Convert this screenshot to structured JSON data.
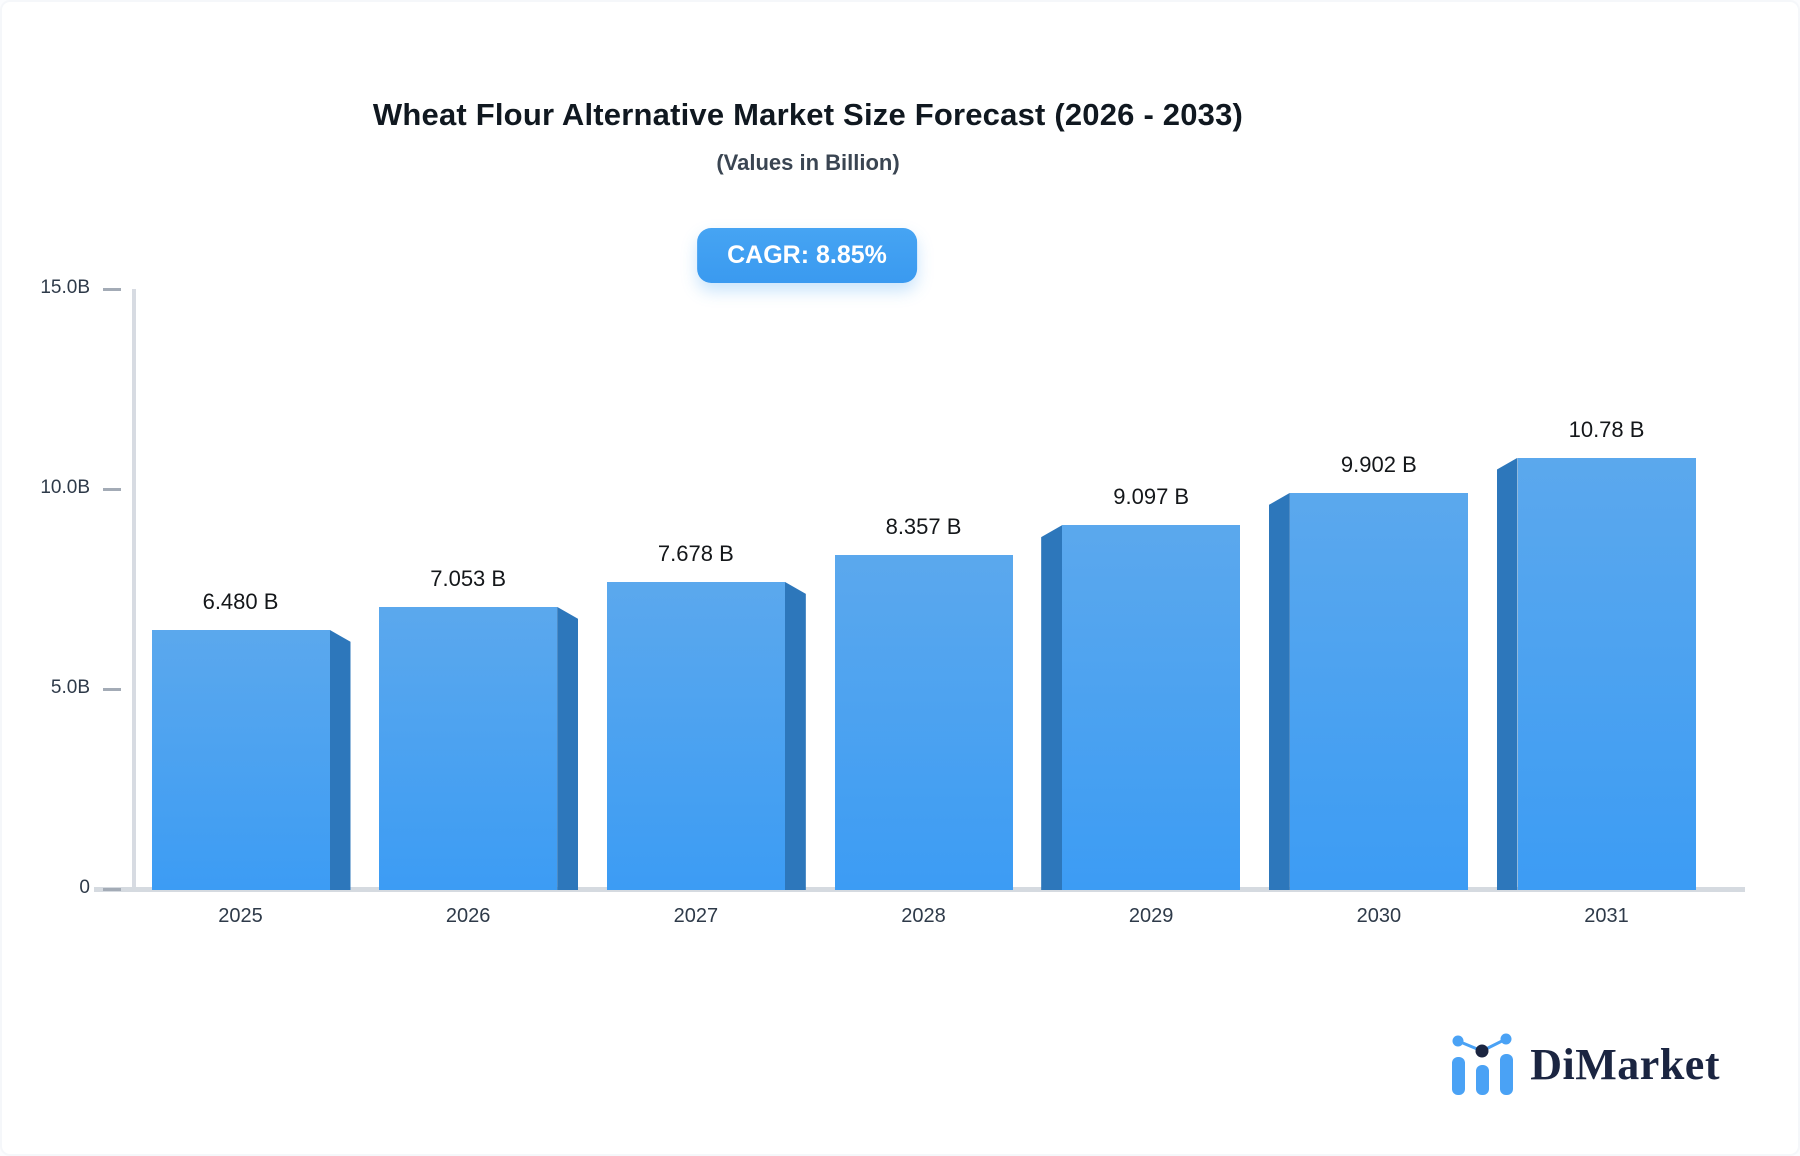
{
  "badge": {
    "label": "CAGR: 8.85%"
  },
  "logo": {
    "text": "DiMarket",
    "icon": "bar-chart-logo-icon"
  },
  "colors": {
    "accent_blue": "#3e9ff1",
    "bar_top": "#5ba8ed",
    "bar_bottom": "#3c9cf4",
    "bar_side": "#2d77bb",
    "axis_gray": "#d7dbe2",
    "logo_navy": "#1b2541"
  },
  "chart_data": {
    "type": "bar",
    "title": "Wheat Flour Alternative Market Size Forecast (2026 - 2033)",
    "subtitle": "(Values in Billion)",
    "categories": [
      "2025",
      "2026",
      "2027",
      "2028",
      "2029",
      "2030",
      "2031"
    ],
    "values": [
      6.48,
      7.053,
      7.678,
      8.357,
      9.097,
      9.902,
      10.78
    ],
    "bar_labels": [
      "6.480 B",
      "7.053 B",
      "7.678 B",
      "8.357 B",
      "9.097 B",
      "9.902 B",
      "10.78 B"
    ],
    "xlabel": "",
    "ylabel": "",
    "ylim": [
      0,
      15
    ],
    "yticks": [
      {
        "value": 0,
        "label": "0"
      },
      {
        "value": 5,
        "label": "5.0B"
      },
      {
        "value": 10,
        "label": "10.0B"
      },
      {
        "value": 15,
        "label": "15.0B"
      }
    ],
    "grid": false,
    "legend": false,
    "bar_color_top": "#5ba8ed",
    "bar_color_bottom": "#3c9cf4",
    "bar_side_color": "#2d77bb"
  }
}
